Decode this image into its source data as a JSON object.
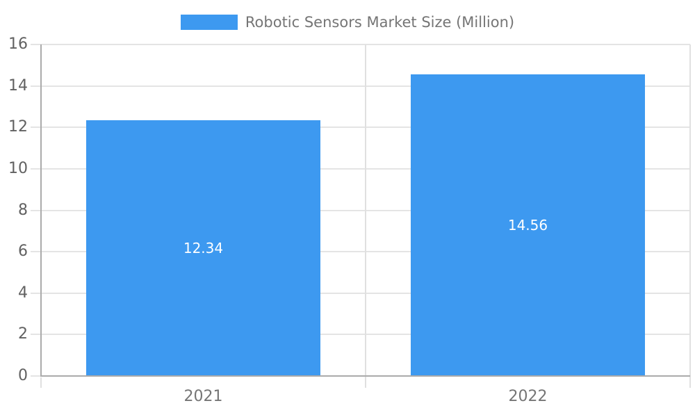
{
  "chart_data": {
    "type": "bar",
    "categories": [
      "2021",
      "2022"
    ],
    "values": [
      12.34,
      14.56
    ],
    "value_labels": [
      "12.34",
      "14.56"
    ],
    "legend": {
      "label": "Robotic Sensors Market Size (Million)",
      "position": "top-center"
    },
    "ylim": [
      0,
      16
    ],
    "yticks": [
      0,
      2,
      4,
      6,
      8,
      10,
      12,
      14,
      16
    ],
    "grid": true,
    "colors": {
      "bar": "#3d99f0",
      "grid": "#e4e4e4",
      "separator": "#e0e0e0",
      "axis": "#ababab",
      "y_tick_label": "#616161",
      "x_tick_label": "#757575",
      "legend_text": "#757575",
      "value_label": "#ffffff",
      "background": "#ffffff"
    }
  }
}
